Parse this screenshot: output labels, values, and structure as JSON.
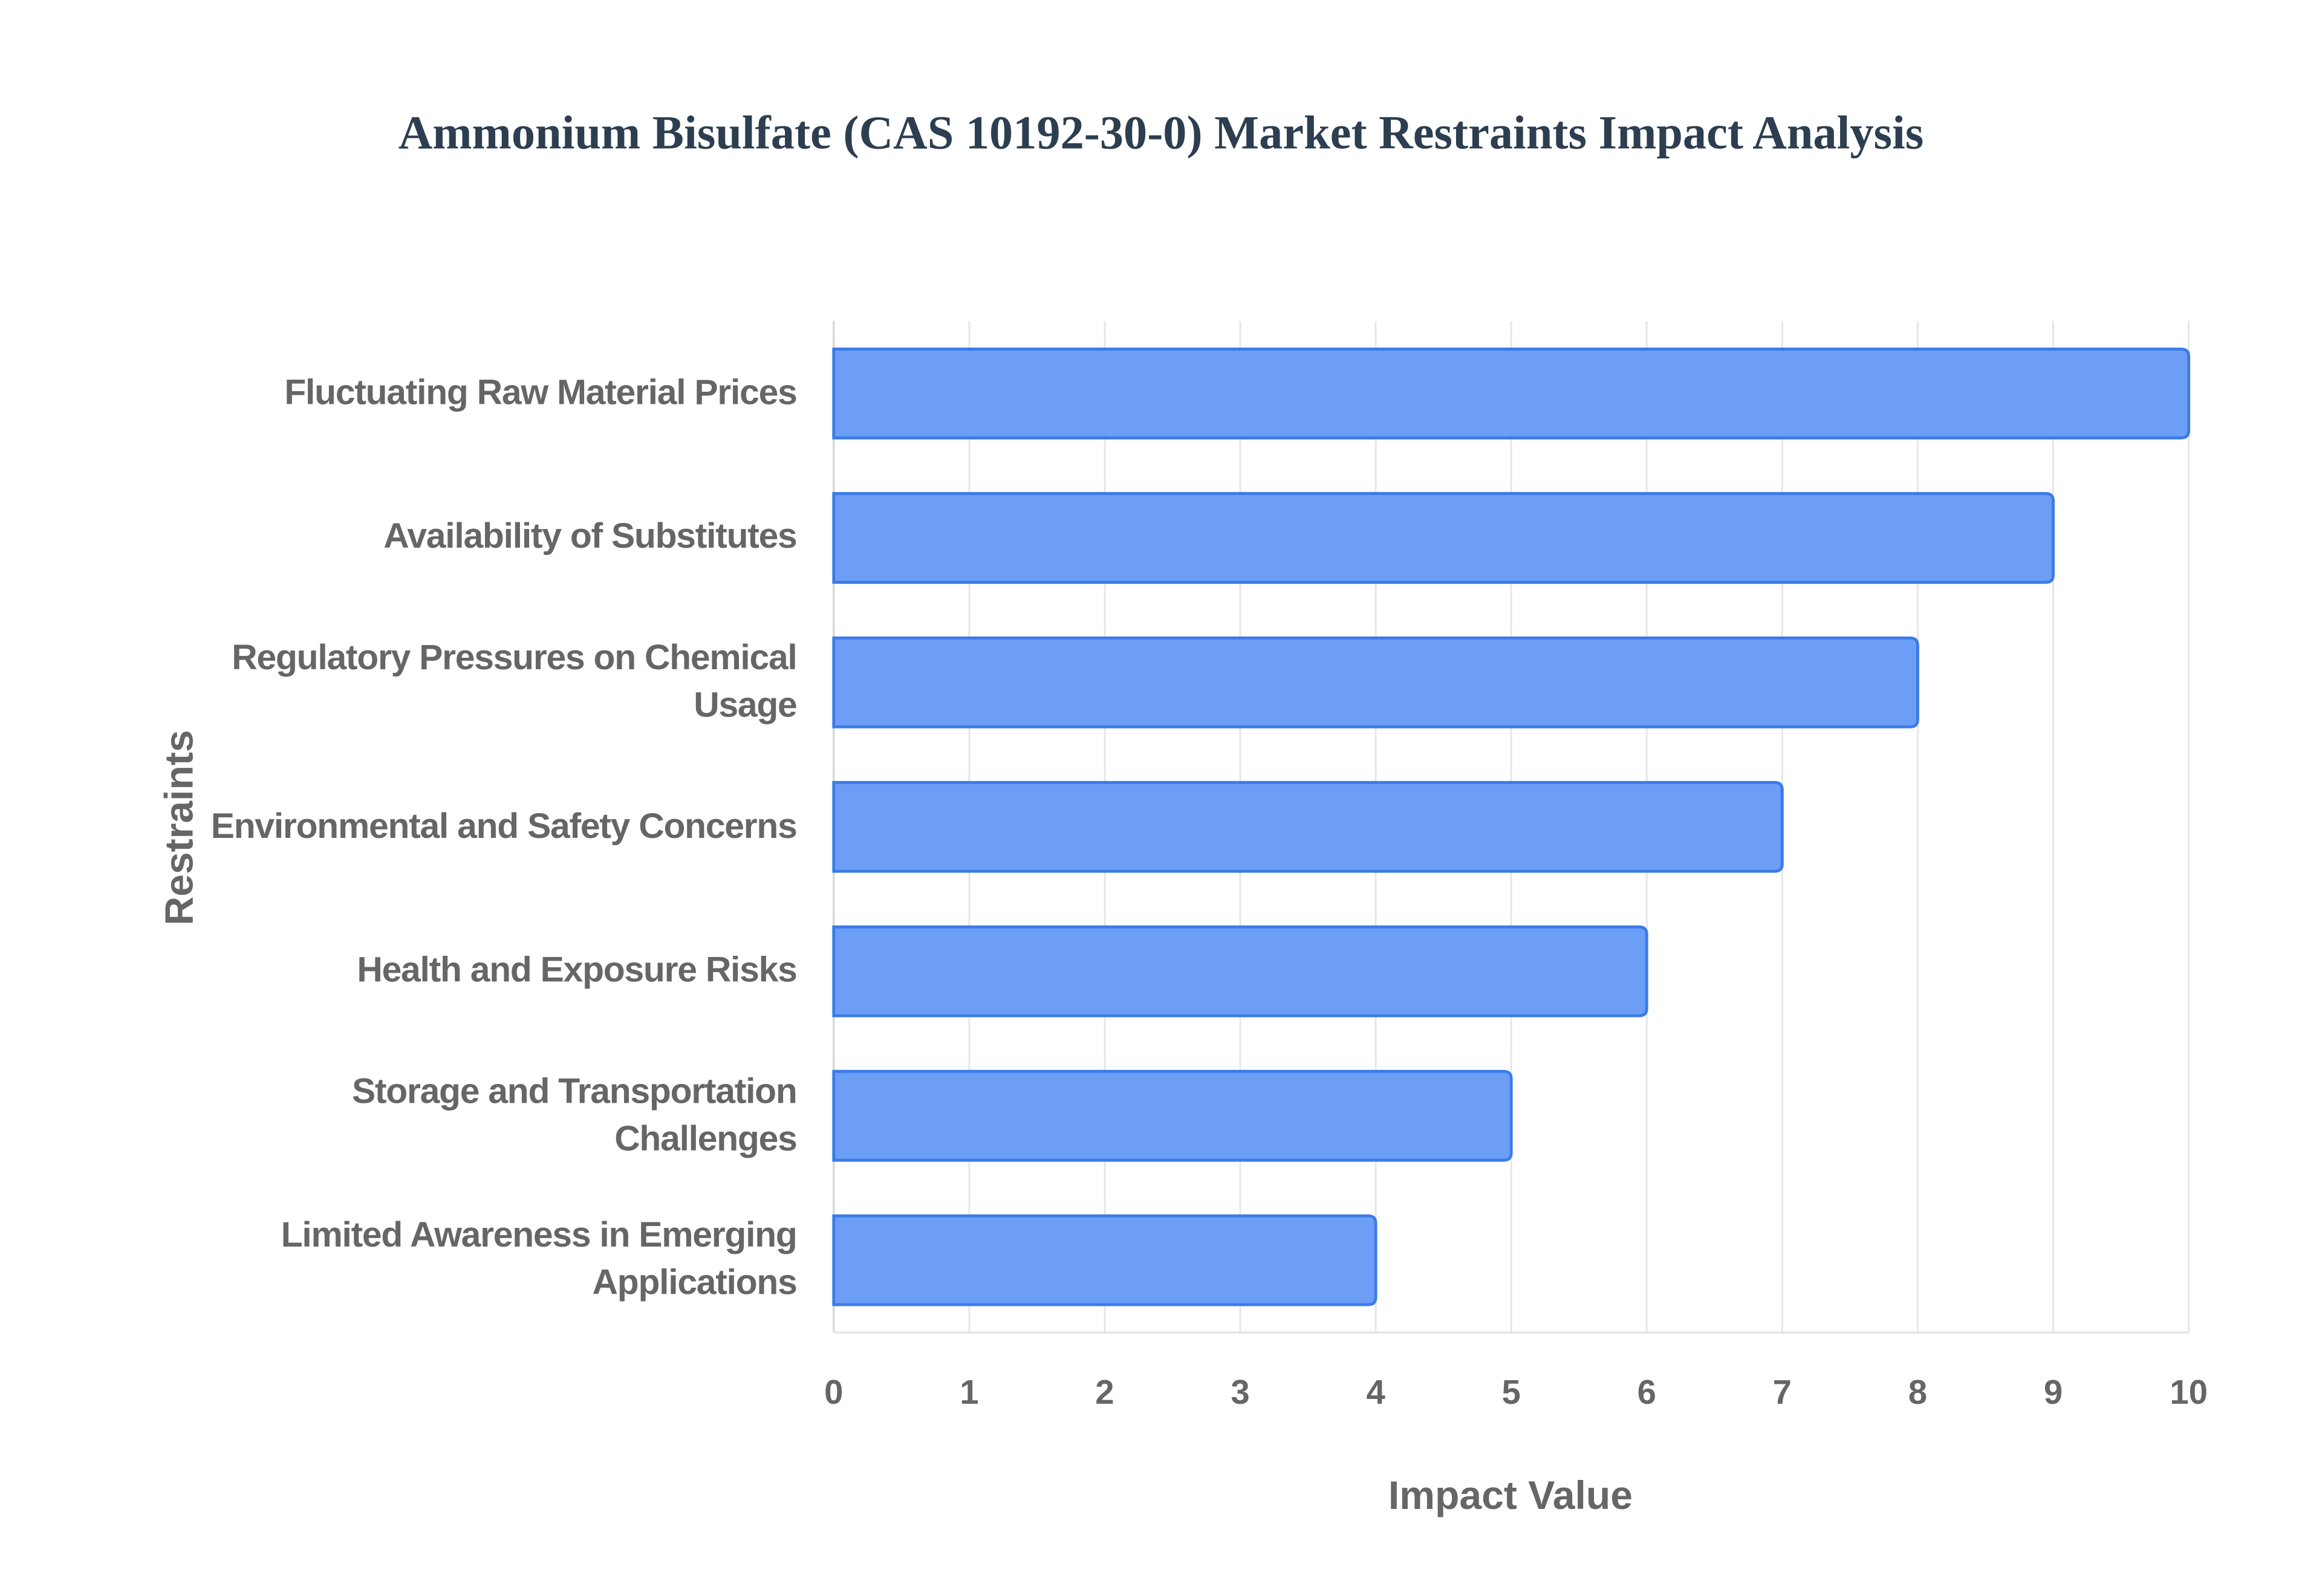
{
  "chart_data": {
    "type": "hbar",
    "title": "Ammonium Bisulfate (CAS 10192-30-0) Market Restraints Impact Analysis",
    "x_label": "Impact Value",
    "y_label": "Restraints",
    "categories": [
      "Fluctuating Raw Material Prices",
      "Availability of Substitutes",
      "Regulatory Pressures on Chemical Usage",
      "Environmental and Safety Concerns",
      "Health and Exposure Risks",
      "Storage and Transportation Challenges",
      "Limited Awareness in Emerging Applications"
    ],
    "values": [
      10,
      9,
      8,
      7,
      6,
      5,
      4
    ],
    "color": "#6499f5",
    "border_color": "#3b7be8",
    "xlim": [
      0,
      10
    ],
    "xticks": [
      0,
      1,
      2,
      3,
      4,
      5,
      6,
      7,
      8,
      9,
      10
    ],
    "grid": true
  }
}
